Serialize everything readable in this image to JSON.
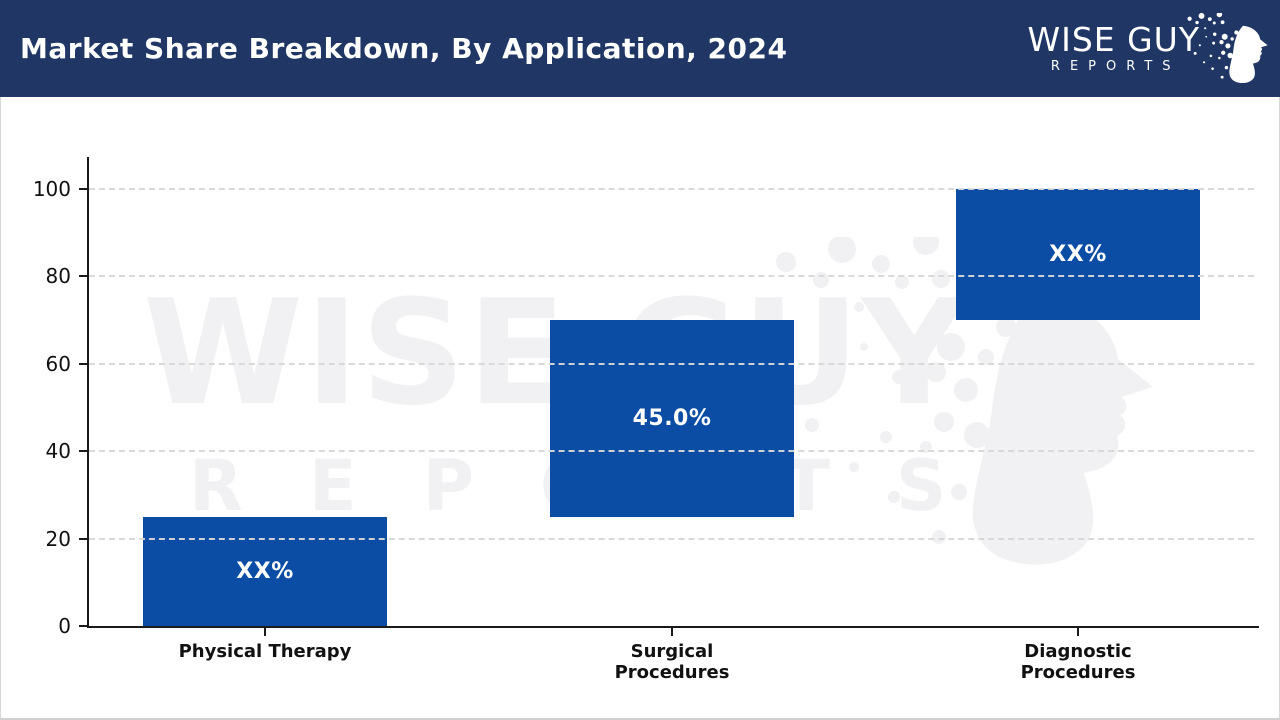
{
  "header": {
    "title": "Market Share Breakdown, By Application, 2024",
    "bg_color": "#203765",
    "logo": {
      "wordmark": "WISE GUY",
      "subtext": "REPORTS"
    }
  },
  "watermark": {
    "wordmark": "WISE GUY",
    "subtext": "REPORTS"
  },
  "chart_data": {
    "type": "bar",
    "variant": "floating-segment (waterfall-style) column chart",
    "title": "Market Share Breakdown, By Application, 2024",
    "categories": [
      "Physical Therapy",
      "Surgical Procedures",
      "Diagnostic Procedures"
    ],
    "category_label_lines": [
      [
        "Physical Therapy"
      ],
      [
        "Surgical",
        "Procedures"
      ],
      [
        "Diagnostic",
        "Procedures"
      ]
    ],
    "series": [
      {
        "name": "Market share segment",
        "ranges": [
          [
            0,
            25
          ],
          [
            25,
            70
          ],
          [
            70,
            100
          ]
        ],
        "display_labels": [
          "XX%",
          "45.0%",
          "XX%"
        ]
      }
    ],
    "ylim": [
      0,
      100
    ],
    "yticks": [
      0,
      20,
      40,
      60,
      80,
      100
    ],
    "xlabel": "",
    "ylabel": "",
    "grid": {
      "horizontal": true,
      "style": "dashed",
      "color": "#d8d8d8"
    },
    "legend": "none",
    "bar_color": "#0b4da4",
    "bar_label_color": "#ffffff",
    "axis_color": "#1a1a1a"
  }
}
